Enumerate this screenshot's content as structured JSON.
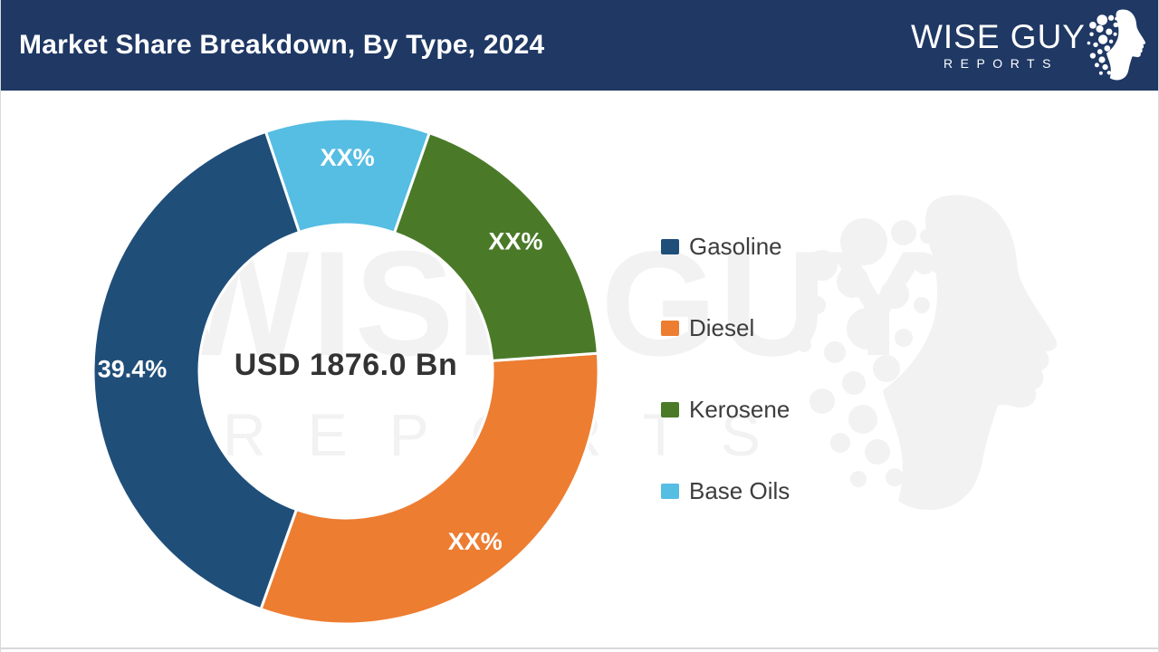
{
  "header": {
    "title": "Market Share Breakdown, By Type, 2024",
    "logo": {
      "wordmark": "WISE GUY",
      "subtitle": "REPORTS"
    }
  },
  "watermark": {
    "wordmark": "WISE GUY",
    "subtitle": "REPORTS"
  },
  "colors": {
    "header_bg": "#1f3864",
    "title_text": "#ffffff",
    "center_label_text": "#333333",
    "legend_text": "#3d3d3d",
    "segment_label_text": "#ffffff",
    "watermark": "#f2f2f2",
    "border": "#d9d9d9"
  },
  "chart_data": {
    "type": "pie",
    "subtype": "donut",
    "title": "Market Share Breakdown, By Type, 2024",
    "center_label": "USD 1876.0 Bn",
    "legend_position": "right",
    "direction": "counterclockwise",
    "start_angle_deg": 108.5,
    "inner_radius_ratio": 0.58,
    "segments": [
      {
        "label": "Gasoline",
        "value_pct": 39.4,
        "display_label": "39.4%",
        "color": "#1f4e79"
      },
      {
        "label": "Diesel",
        "value_pct": 31.6,
        "display_label": "XX%",
        "color": "#ed7d31"
      },
      {
        "label": "Kerosene",
        "value_pct": 18.5,
        "display_label": "XX%",
        "color": "#4a7a28"
      },
      {
        "label": "Base Oils",
        "value_pct": 10.5,
        "display_label": "XX%",
        "color": "#56bde3"
      }
    ]
  }
}
